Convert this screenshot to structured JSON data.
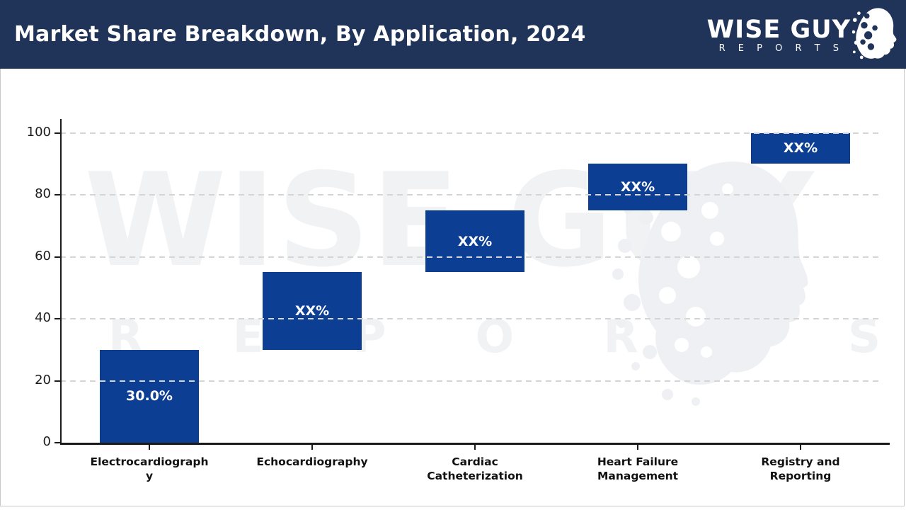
{
  "header": {
    "title": "Market Share Breakdown, By Application, 2024",
    "logo": {
      "brand_line1": "WISE GUY",
      "brand_line2": "R E P O R T S"
    }
  },
  "watermark": {
    "line1": "WISE GUY",
    "line2": "R E P O R T S"
  },
  "chart_data": {
    "type": "bar",
    "subtype": "waterfall-stacked-market-share",
    "title": "Market Share Breakdown, By Application, 2024",
    "categories": [
      "Electrocardiography",
      "Echocardiography",
      "Cardiac Catheterization",
      "Heart Failure Management",
      "Registry and Reporting"
    ],
    "bars": [
      {
        "category": "Electrocardiography",
        "label_lines": [
          "Electrocardiograph",
          "y"
        ],
        "start": 0,
        "end": 30,
        "value": 30,
        "value_label": "30.0%"
      },
      {
        "category": "Echocardiography",
        "label_lines": [
          "Echocardiography"
        ],
        "start": 30,
        "end": 55,
        "value": 25,
        "value_label": "XX%"
      },
      {
        "category": "Cardiac Catheterization",
        "label_lines": [
          "Cardiac",
          "Catheterization"
        ],
        "start": 55,
        "end": 75,
        "value": 20,
        "value_label": "XX%"
      },
      {
        "category": "Heart Failure Management",
        "label_lines": [
          "Heart Failure",
          "Management"
        ],
        "start": 75,
        "end": 90,
        "value": 15,
        "value_label": "XX%"
      },
      {
        "category": "Registry and Reporting",
        "label_lines": [
          "Registry and",
          "Reporting"
        ],
        "start": 90,
        "end": 100,
        "value": 10,
        "value_label": "XX%"
      }
    ],
    "yticks": [
      0,
      20,
      40,
      60,
      80,
      100
    ],
    "ylim": [
      0,
      105
    ],
    "xlabel": "",
    "ylabel": "",
    "legend": null,
    "grid": "horizontal-dashed",
    "colors": {
      "bar": "#0c3e93",
      "header_bg": "#20345a",
      "grid_line": "#d5d5d5",
      "axis": "#1a1a1a",
      "value_label": "#ffffff",
      "watermark": "#f1f2f4"
    }
  }
}
